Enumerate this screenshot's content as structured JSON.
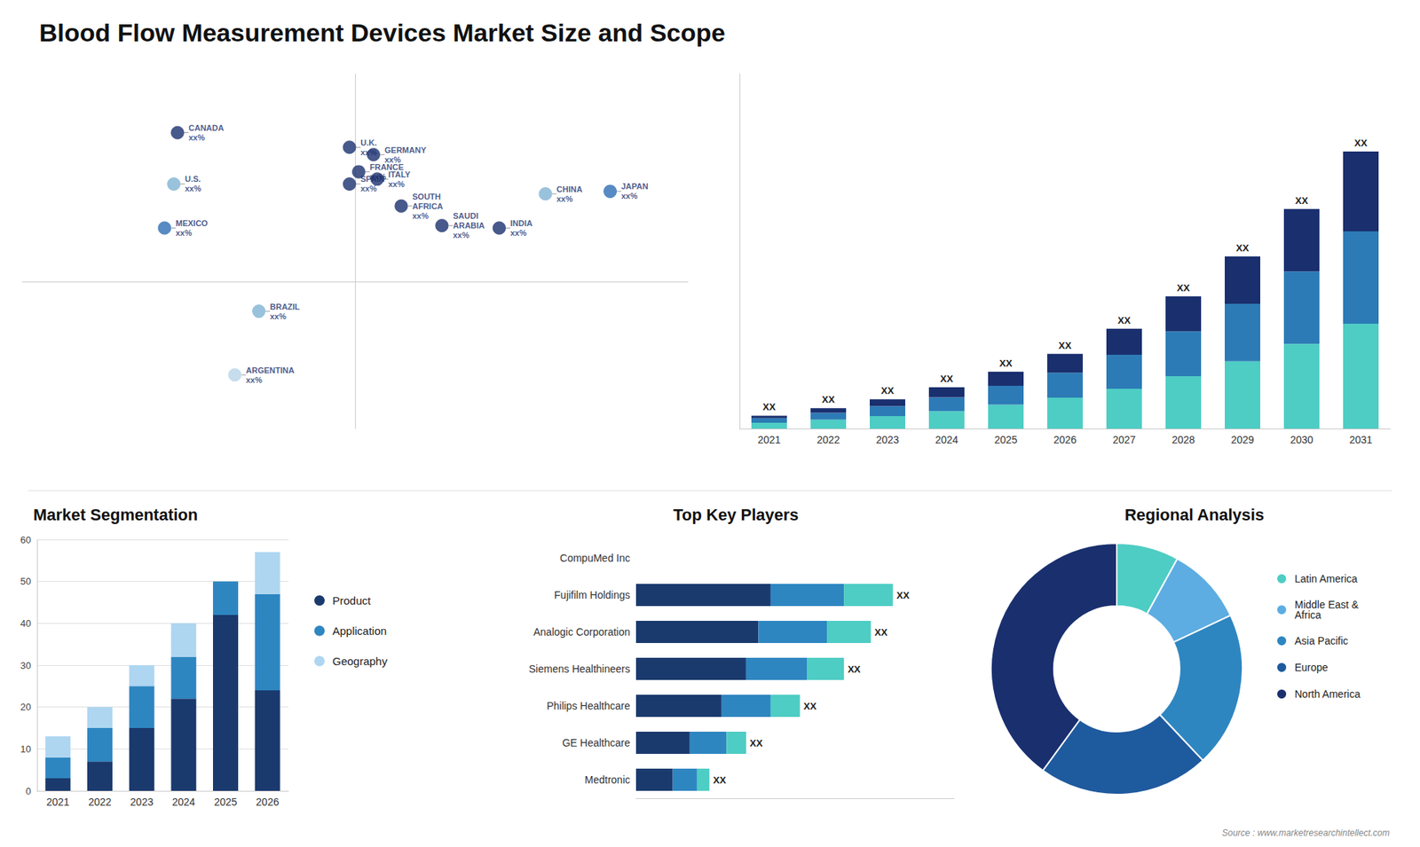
{
  "title": "Blood Flow Measurement Devices Market Size and Scope",
  "annotations": [
    "Source : www.marketresearchintellect.com"
  ],
  "chart_data": [
    {
      "type": "scatter",
      "x": [
        -98,
        -96,
        -103,
        -52,
        -65,
        -3,
        2,
        10,
        -3,
        12,
        47,
        25,
        103,
        78,
        138
      ],
      "y": [
        40,
        61,
        22,
        -12,
        -38,
        55,
        45,
        52,
        40,
        42,
        23,
        31,
        36,
        22,
        37
      ],
      "value_labels": [
        "U.S.\nxx%",
        "CANADA\nxx%",
        "MEXICO\nxx%",
        "BRAZIL\nxx%",
        "ARGENTINA\nxx%",
        "U.K.\nxx%",
        "FRANCE\nxx%",
        "GERMANY\nxx%",
        "SPAIN\nxx%",
        "ITALY\nxx%",
        "SAUDI\nARABIA\nxx%",
        "SOUTH\nAFRICA\nxx%",
        "CHINA\nxx%",
        "INDIA\nxx%",
        "JAPAN\nxx%"
      ],
      "colors": [
        "#7fb3d3",
        "#1a2f6e",
        "#2e6db4",
        "#7fb3d3",
        "#b8d4e8",
        "#1a2f6e",
        "#1a2f6e",
        "#1a2f6e",
        "#1a2f6e",
        "#1a2f6e",
        "#1a2f6e",
        "#1a2f6e",
        "#7fb3d3",
        "#1a2f6e",
        "#2e6db4"
      ],
      "xlim": [
        -180,
        180
      ],
      "ylim": [
        -60,
        85
      ],
      "tick_labels": false,
      "data_labels": true
    },
    {
      "type": "bar",
      "categories": [
        "2021",
        "2022",
        "2023",
        "2024",
        "2025",
        "2026",
        "2027",
        "2028",
        "2029",
        "2030",
        "2031"
      ],
      "series": [
        {
          "color": "#4ecdc4",
          "values": [
            1.2,
            1.8,
            2.5,
            3.5,
            4.8,
            6.2,
            8.0,
            10.5,
            13.5,
            17.0,
            21.0
          ]
        },
        {
          "color": "#2c7bb6",
          "values": [
            0.9,
            1.4,
            2.0,
            2.8,
            3.8,
            5.0,
            6.8,
            9.0,
            11.5,
            14.5,
            18.5
          ]
        },
        {
          "color": "#1a2f6e",
          "values": [
            0.5,
            0.9,
            1.4,
            2.0,
            2.8,
            3.8,
            5.2,
            7.0,
            9.5,
            12.5,
            16.0
          ]
        }
      ],
      "stacked": true,
      "ylim": [
        0,
        71.04
      ],
      "tick_labels": "x",
      "annotations": [
        "XX",
        "XX",
        "XX",
        "XX",
        "XX",
        "XX",
        "XX",
        "XX",
        "XX",
        "XX",
        "XX"
      ]
    },
    {
      "type": "bar",
      "title": "Market Segmentation",
      "categories": [
        "2021",
        "2022",
        "2023",
        "2024",
        "2025",
        "2026"
      ],
      "series": [
        {
          "name": "Product",
          "color": "#1a3a6e",
          "values": [
            3,
            7,
            15,
            22,
            42,
            24
          ]
        },
        {
          "name": "Application",
          "color": "#2e86c1",
          "values": [
            5,
            8,
            10,
            10,
            8,
            23
          ]
        },
        {
          "name": "Geography",
          "color": "#aed6f1",
          "values": [
            5,
            5,
            5,
            8,
            0,
            10
          ]
        }
      ],
      "stacked": true,
      "ylim": [
        0,
        60
      ],
      "yticks": [
        0,
        10,
        20,
        30,
        40,
        50,
        60
      ],
      "grid": true,
      "legend": "right"
    },
    {
      "type": "bar",
      "title": "Top Key Players",
      "orientation": "horizontal",
      "categories": [
        "CompuMed Inc",
        "Fujifilm Holdings",
        "Analogic Corporation",
        "Siemens Healthineers",
        "Philips Healthcare",
        "GE Healthcare",
        "Medtronic"
      ],
      "series": [
        {
          "color": "#1a3a6e",
          "values": [
            0,
            5.5,
            5.0,
            4.5,
            3.5,
            2.2,
            1.5
          ]
        },
        {
          "color": "#2e86c1",
          "values": [
            0,
            3.0,
            2.8,
            2.5,
            2.0,
            1.5,
            1.0
          ]
        },
        {
          "color": "#4ecdc4",
          "values": [
            0,
            2.0,
            1.8,
            1.5,
            1.2,
            0.8,
            0.5
          ]
        }
      ],
      "stacked": true,
      "xlim": [
        0,
        13
      ],
      "tick_labels": "y",
      "annotations": [
        null,
        "XX",
        "XX",
        "XX",
        "XX",
        "XX",
        "XX"
      ]
    },
    {
      "type": "pie",
      "title": "Regional Analysis",
      "categories": [
        "Latin America",
        "Middle East &\nAfrica",
        "Asia Pacific",
        "Europe",
        "North America"
      ],
      "values": [
        8,
        10,
        20,
        22,
        40
      ],
      "colors": [
        "#4ecdc4",
        "#5dade2",
        "#2e86c1",
        "#1e5a9e",
        "#1a2f6e"
      ],
      "legend": "right"
    }
  ]
}
